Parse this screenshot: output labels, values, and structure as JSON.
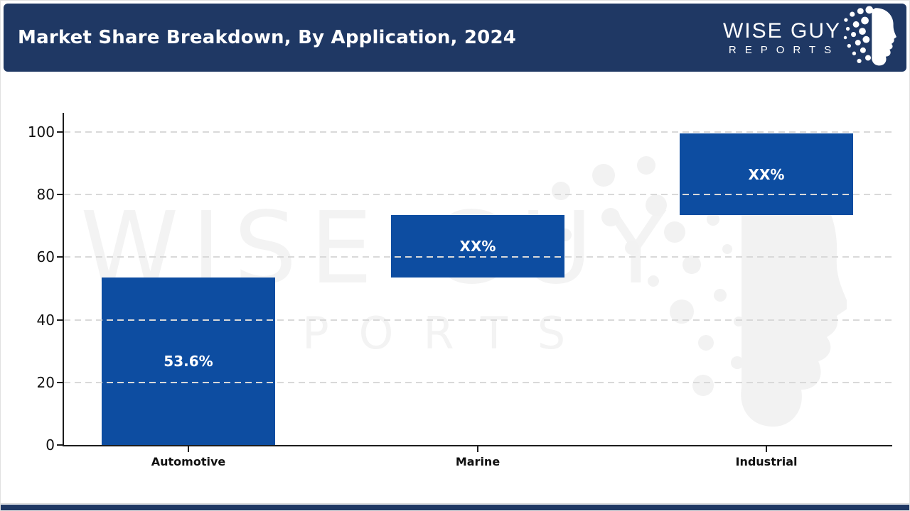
{
  "header": {
    "title": "Market Share Breakdown, By Application, 2024",
    "bg_color": "#1f3864",
    "text_color": "#ffffff",
    "logo": {
      "line1": "WISE GUY",
      "line2": "REPORTS"
    }
  },
  "watermark": {
    "line1": "WISE GUY",
    "line2": "REPORTS"
  },
  "footer": {
    "bg_color": "#1f3864"
  },
  "chart_data": {
    "type": "bar",
    "subtype": "floating-stacked-waterfall",
    "title": "Market Share Breakdown, By Application, 2024",
    "categories": [
      "Automotive",
      "Marine",
      "Industrial"
    ],
    "bars": [
      {
        "category": "Automotive",
        "start": 0,
        "end": 53.6,
        "label": "53.6%"
      },
      {
        "category": "Marine",
        "start": 53.6,
        "end": 73.5,
        "label": "XX%"
      },
      {
        "category": "Industrial",
        "start": 73.5,
        "end": 99.5,
        "label": "XX%"
      }
    ],
    "yticks": [
      0,
      20,
      40,
      60,
      80,
      100
    ],
    "ylim": [
      0,
      106
    ],
    "xlabel": "",
    "ylabel": "",
    "grid": "horizontal-dashed",
    "legend": "none",
    "bar_color": "#0d4da1",
    "bar_label_color": "#ffffff",
    "axis_color": "#1c1c1c",
    "grid_color": "#d9d9d9"
  }
}
